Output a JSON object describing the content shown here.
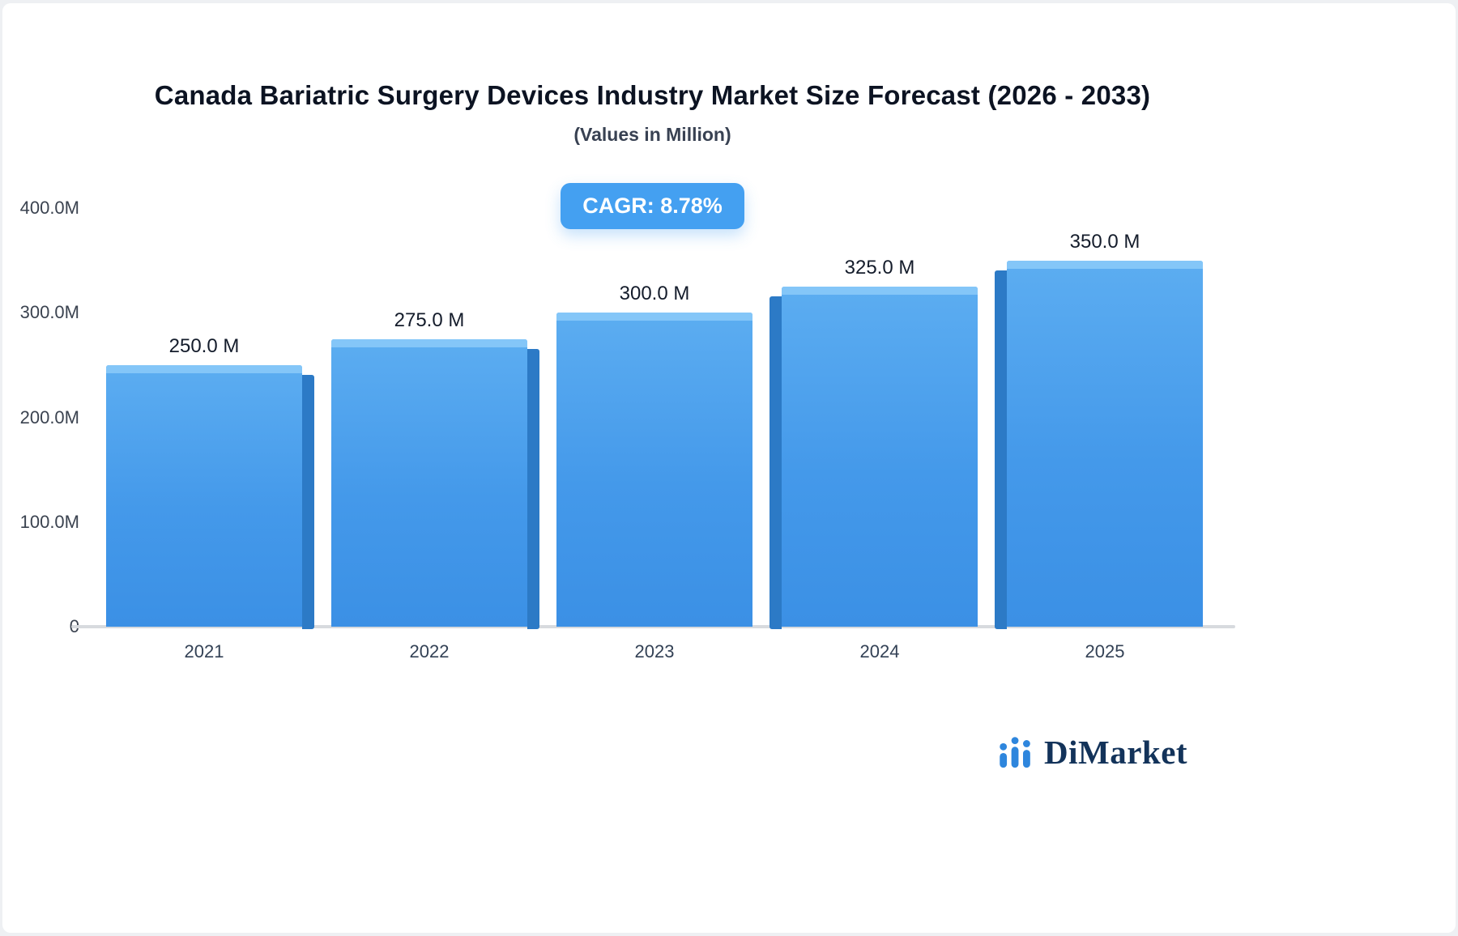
{
  "header": {
    "title": "Canada Bariatric Surgery Devices Industry Market Size Forecast (2026 - 2033)",
    "subtitle": "(Values in Million)",
    "cagr_badge": "CAGR: 8.78%"
  },
  "chart_data": {
    "type": "bar",
    "title": "Canada Bariatric Surgery Devices Industry Market Size Forecast (2026 - 2033)",
    "subtitle": "(Values in Million)",
    "categories": [
      "2021",
      "2022",
      "2023",
      "2024",
      "2025"
    ],
    "values": [
      250,
      275,
      300,
      325,
      350
    ],
    "value_labels": [
      "250.0 M",
      "275.0 M",
      "300.0 M",
      "325.0 M",
      "350.0 M"
    ],
    "unit": "Million",
    "cagr": "8.78%",
    "xlabel": "",
    "ylabel": "",
    "ylim": [
      0,
      400
    ],
    "yticks": [
      {
        "value": 400,
        "label": "400.0M"
      },
      {
        "value": 300,
        "label": "300.0M"
      },
      {
        "value": 200,
        "label": "200.0M"
      },
      {
        "value": 100,
        "label": "100.0M"
      },
      {
        "value": 0,
        "label": "0"
      }
    ],
    "grid": false,
    "legend_position": "none",
    "colors": {
      "bar_cap": "#84c6f8",
      "bar_gradient_top": "#5cadf1",
      "bar_gradient_bottom": "#3b90e5",
      "bar_3d_side": "#2c7ac6",
      "badge_bg": "#44a0f1",
      "axis_line": "#d7dade"
    }
  },
  "branding": {
    "logo_text": "DiMarket",
    "logo_icon": "bar-chart-dots-icon",
    "logo_text_color": "#13335a",
    "logo_icon_color": "#2e86dd"
  }
}
